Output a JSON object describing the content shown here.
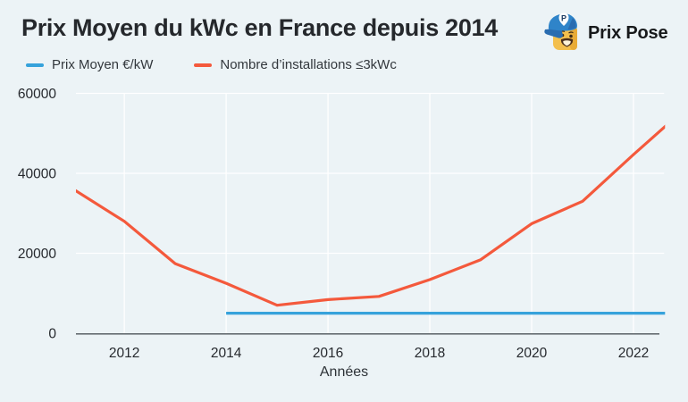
{
  "header": {
    "brand": "Prix Pose"
  },
  "colors": {
    "background": "#ecf3f6",
    "grid": "#ffffff",
    "axis_line": "#4d5358",
    "tick_text": "#26292e",
    "blue_series": "#36a2db",
    "orange_series": "#f4593c",
    "logo_cap": "#2f84c9",
    "logo_face": "#f3bf4d"
  },
  "chart_data": {
    "type": "line",
    "title": "Prix Moyen du kWc en France depuis 2014",
    "xlabel": "Années",
    "ylabel": "",
    "xlim": [
      2011.05,
      2022.62
    ],
    "ylim": [
      0,
      60000
    ],
    "xticks": [
      2012,
      2014,
      2016,
      2018,
      2020,
      2022
    ],
    "yticks": [
      0,
      20000,
      40000,
      60000
    ],
    "grid": true,
    "legend_position": "top-left",
    "series": [
      {
        "name": "Prix Moyen €/kW",
        "color": "#36a2db",
        "x": [
          2014,
          2015,
          2016,
          2017,
          2018,
          2019,
          2020,
          2021,
          2022,
          2023
        ],
        "values": [
          5000,
          5000,
          5000,
          5000,
          5000,
          5000,
          5000,
          5000,
          5000,
          5000
        ]
      },
      {
        "name": "Nombre d’installations ≤3kWc",
        "color": "#f4593c",
        "x": [
          2011,
          2012,
          2013,
          2014,
          2015,
          2016,
          2017,
          2018,
          2019,
          2020,
          2021,
          2022,
          2023
        ],
        "values": [
          36000,
          28000,
          17400,
          12500,
          7000,
          8400,
          9200,
          13400,
          18400,
          27400,
          33000,
          44700,
          56000
        ]
      }
    ]
  }
}
